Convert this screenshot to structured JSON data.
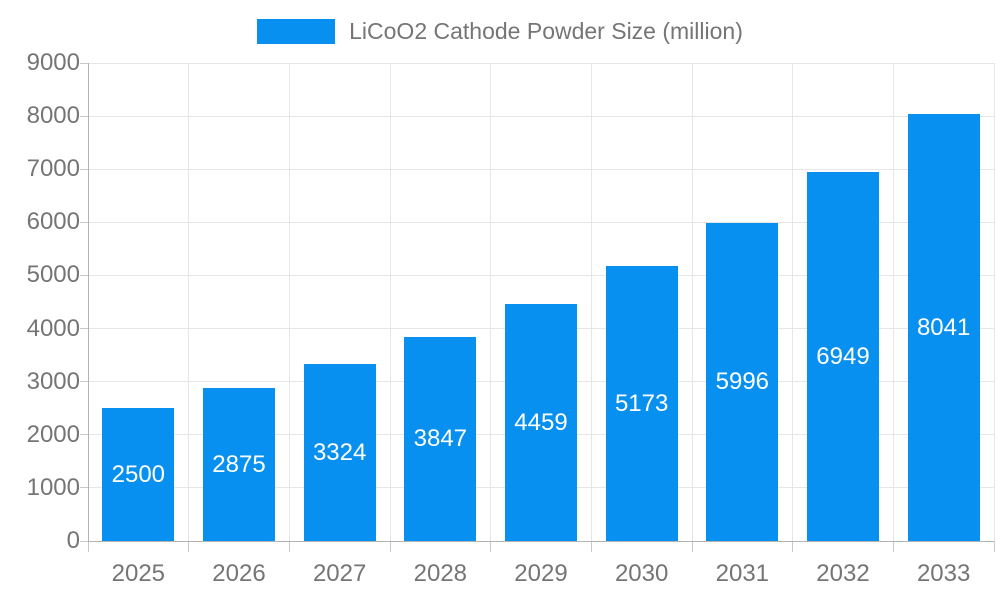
{
  "chart_data": {
    "type": "bar",
    "title": "",
    "legend_label": "LiCoO2 Cathode Powder Size (million)",
    "legend_position": "top",
    "categories": [
      "2025",
      "2026",
      "2027",
      "2028",
      "2029",
      "2030",
      "2031",
      "2032",
      "2033"
    ],
    "series": [
      {
        "name": "LiCoO2 Cathode Powder Size (million)",
        "values": [
          2500,
          2875,
          3324,
          3847,
          4459,
          5173,
          5996,
          6949,
          8041
        ]
      }
    ],
    "xlabel": "",
    "ylabel": "",
    "ylim": [
      0,
      9000
    ],
    "yticks": [
      0,
      1000,
      2000,
      3000,
      4000,
      5000,
      6000,
      7000,
      8000,
      9000
    ],
    "grid": true,
    "bar_value_labels_visible": true,
    "colors": {
      "bar": "#0890f0",
      "bar_value_label": "#ffffff",
      "axis_text": "#757575",
      "gridline": "#e6e6e6",
      "axis_line": "#b3b3b3",
      "tick": "#c9c9c9",
      "background": "#ffffff"
    }
  }
}
